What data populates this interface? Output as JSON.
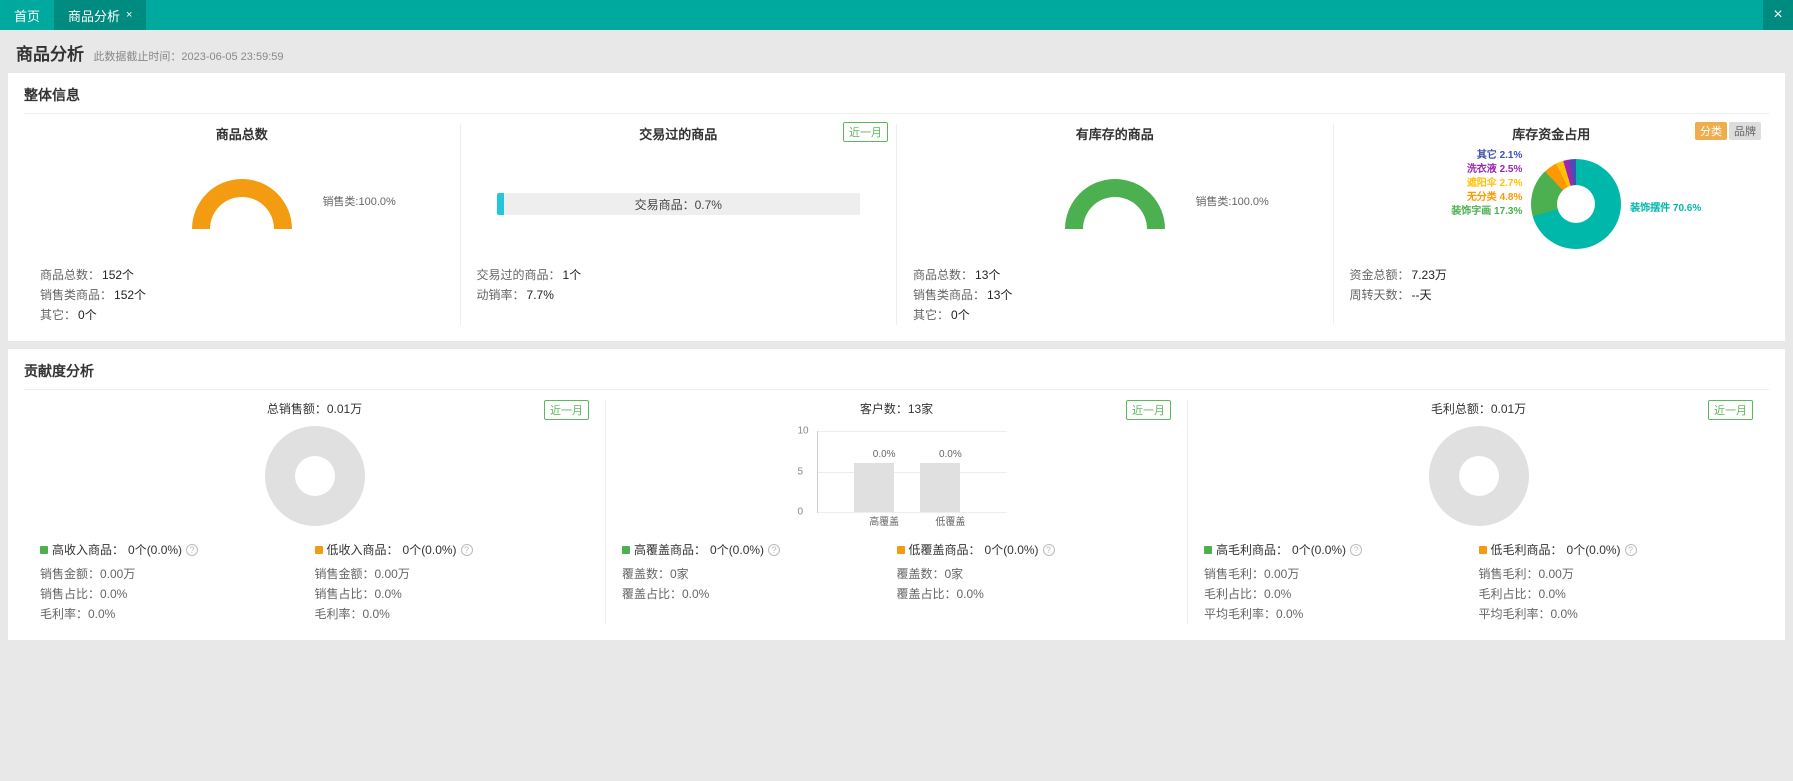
{
  "tabs": {
    "home": "首页",
    "active": "商品分析",
    "close_glyph": "×"
  },
  "header": {
    "title": "商品分析",
    "subtitle_prefix": "此数据截止时间：",
    "subtitle_time": "2023-06-05 23:59:59"
  },
  "overall": {
    "section_title": "整体信息",
    "card1": {
      "title": "商品总数",
      "gauge_color": "#f39c12",
      "gauge_percent": 100.0,
      "side_label": "销售类:100.0%",
      "stats": [
        {
          "k": "商品总数：",
          "v": "152个"
        },
        {
          "k": "销售类商品：",
          "v": "152个"
        },
        {
          "k": "其它：",
          "v": "0个"
        }
      ]
    },
    "card2": {
      "title": "交易过的商品",
      "badge": "近一月",
      "progress_percent": 0.7,
      "progress_label": "交易商品：0.7%",
      "bar_fill_color": "#26c6da",
      "bar_bg_color": "#eeeeee",
      "stats": [
        {
          "k": "交易过的商品：",
          "v": "1个"
        },
        {
          "k": "动销率：",
          "v": "7.7%"
        }
      ]
    },
    "card3": {
      "title": "有库存的商品",
      "gauge_color": "#4caf50",
      "gauge_percent": 100.0,
      "side_label": "销售类:100.0%",
      "stats": [
        {
          "k": "商品总数：",
          "v": "13个"
        },
        {
          "k": "销售类商品：",
          "v": "13个"
        },
        {
          "k": "其它：",
          "v": "0个"
        }
      ]
    },
    "card4": {
      "title": "库存资金占用",
      "toggle": {
        "active": "分类",
        "inactive": "品牌"
      },
      "pie": {
        "slices": [
          {
            "label": "装饰摆件",
            "pct": 70.6,
            "color": "#00b8a9"
          },
          {
            "label": "装饰字画",
            "pct": 17.3,
            "color": "#4caf50"
          },
          {
            "label": "无分类",
            "pct": 4.8,
            "color": "#ff9800"
          },
          {
            "label": "遮阳伞",
            "pct": 2.7,
            "color": "#ffc107"
          },
          {
            "label": "洗衣液",
            "pct": 2.5,
            "color": "#9c27b0"
          },
          {
            "label": "其它",
            "pct": 2.1,
            "color": "#3f51b5"
          }
        ],
        "main_label": "装饰摆件 70.6%"
      },
      "stats": [
        {
          "k": "资金总额：",
          "v": "7.23万"
        },
        {
          "k": "周转天数：",
          "v": "--天"
        }
      ]
    }
  },
  "contrib": {
    "section_title": "贡献度分析",
    "badge": "近一月",
    "c1": {
      "title_k": "总销售额：",
      "title_v": "0.01万",
      "donut_color": "#e0e0e0",
      "left": {
        "color": "green",
        "hdr": "高收入商品：",
        "val": "0个(0.0%)",
        "lines": [
          {
            "k": "销售金额：",
            "v": "0.00万"
          },
          {
            "k": "销售占比：",
            "v": "0.0%"
          },
          {
            "k": "毛利率：",
            "v": "0.0%"
          }
        ]
      },
      "right": {
        "color": "orange",
        "hdr": "低收入商品：",
        "val": "0个(0.0%)",
        "lines": [
          {
            "k": "销售金额：",
            "v": "0.00万"
          },
          {
            "k": "销售占比：",
            "v": "0.0%"
          },
          {
            "k": "毛利率：",
            "v": "0.0%"
          }
        ]
      }
    },
    "c2": {
      "title_k": "客户数：",
      "title_v": "13家",
      "bar_chart": {
        "ylim": [
          0,
          10
        ],
        "yticks": [
          0,
          5,
          10
        ],
        "bars": [
          {
            "label": "高覆盖",
            "top": "0.0%",
            "h": 1.0,
            "color": "#e0e0e0"
          },
          {
            "label": "低覆盖",
            "top": "0.0%",
            "h": 1.0,
            "color": "#e0e0e0"
          }
        ]
      },
      "left": {
        "color": "green",
        "hdr": "高覆盖商品：",
        "val": "0个(0.0%)",
        "lines": [
          {
            "k": "覆盖数：",
            "v": "0家"
          },
          {
            "k": "覆盖占比：",
            "v": "0.0%"
          }
        ]
      },
      "right": {
        "color": "orange",
        "hdr": "低覆盖商品：",
        "val": "0个(0.0%)",
        "lines": [
          {
            "k": "覆盖数：",
            "v": "0家"
          },
          {
            "k": "覆盖占比：",
            "v": "0.0%"
          }
        ]
      }
    },
    "c3": {
      "title_k": "毛利总额：",
      "title_v": "0.01万",
      "donut_color": "#e0e0e0",
      "left": {
        "color": "green",
        "hdr": "高毛利商品：",
        "val": "0个(0.0%)",
        "lines": [
          {
            "k": "销售毛利：",
            "v": "0.00万"
          },
          {
            "k": "毛利占比：",
            "v": "0.0%"
          },
          {
            "k": "平均毛利率：",
            "v": "0.0%"
          }
        ]
      },
      "right": {
        "color": "orange",
        "hdr": "低毛利商品：",
        "val": "0个(0.0%)",
        "lines": [
          {
            "k": "销售毛利：",
            "v": "0.00万"
          },
          {
            "k": "毛利占比：",
            "v": "0.0%"
          },
          {
            "k": "平均毛利率：",
            "v": "0.0%"
          }
        ]
      }
    }
  },
  "help_glyph": "?"
}
